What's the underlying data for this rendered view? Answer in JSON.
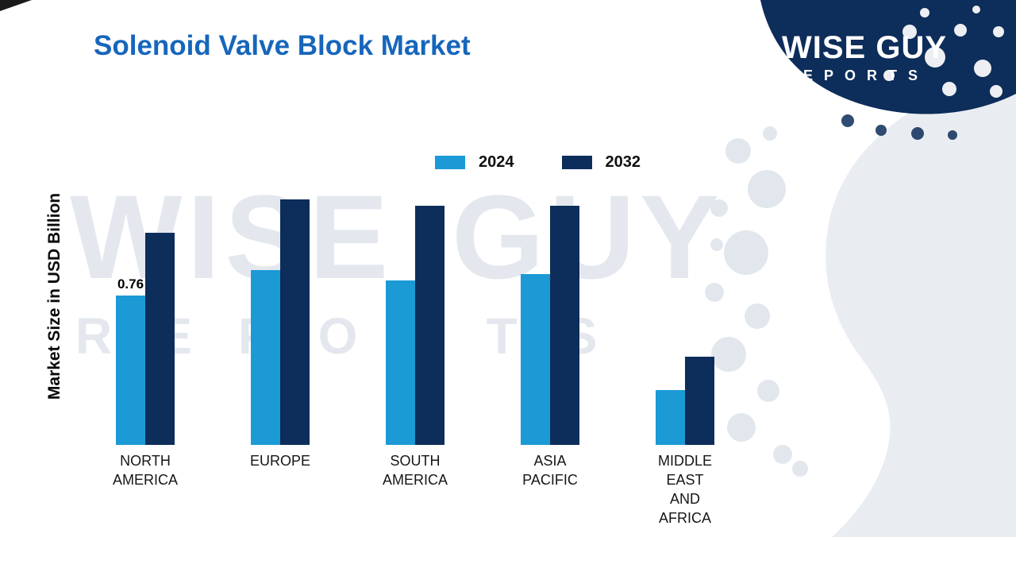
{
  "page": {
    "title": "Solenoid Valve Block Market"
  },
  "brand": {
    "line1": "WISE GUY",
    "line2": "REPORTS",
    "bg_color": "#0d2d5a"
  },
  "watermark": {
    "line1": "WISE GUY",
    "line2": "REPORTS"
  },
  "chart_data": {
    "type": "bar",
    "title": "Solenoid Valve Block Market",
    "xlabel": "",
    "ylabel": "Market Size in USD Billion",
    "unit": "USD Billion",
    "categories": [
      "NORTH AMERICA",
      "EUROPE",
      "SOUTH AMERICA",
      "ASIA PACIFIC",
      "MIDDLE EAST AND AFRICA"
    ],
    "category_lines": [
      [
        "NORTH",
        "AMERICA"
      ],
      [
        "EUROPE"
      ],
      [
        "SOUTH",
        "AMERICA"
      ],
      [
        "ASIA",
        "PACIFIC"
      ],
      [
        "MIDDLE",
        "EAST",
        "AND",
        "AFRICA"
      ]
    ],
    "series": [
      {
        "name": "2024",
        "color": "#1b9ad6",
        "values": [
          0.76,
          0.89,
          0.84,
          0.87,
          0.28
        ]
      },
      {
        "name": "2032",
        "color": "#0d2d5a",
        "values": [
          1.08,
          1.25,
          1.22,
          1.22,
          0.45
        ]
      }
    ],
    "shown_data_labels": [
      {
        "category": "NORTH AMERICA",
        "series": "2024",
        "text": "0.76"
      }
    ],
    "legend_position": "top",
    "grid": false,
    "ylim": [
      0,
      1.4
    ]
  }
}
